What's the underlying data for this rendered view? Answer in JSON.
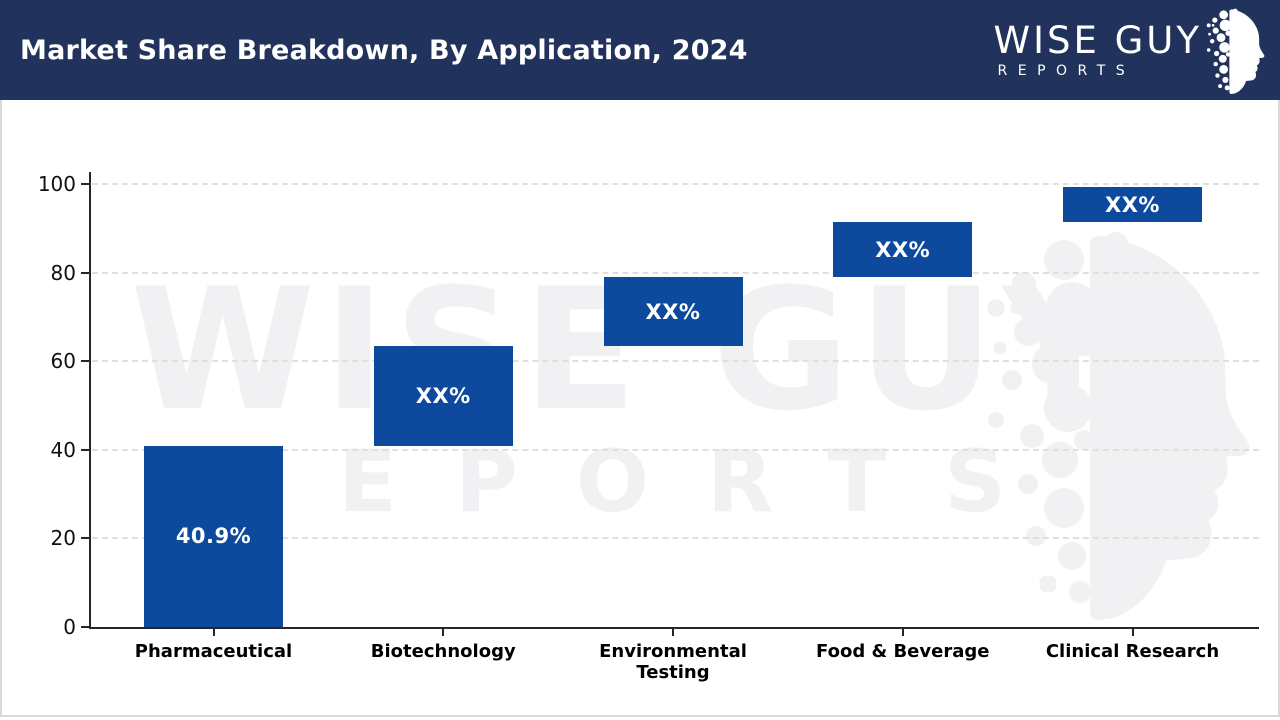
{
  "header": {
    "title": "Market Share Breakdown, By Application, 2024",
    "logo": {
      "line1": "WISE GUY",
      "line2": "REPORTS",
      "head_icon": "dotted-head-profile-icon"
    }
  },
  "watermark": {
    "line1": "WISE GUY",
    "line2": "REPORTS",
    "head_icon": "dotted-head-profile-icon"
  },
  "chart_data": {
    "type": "bar",
    "subtype": "waterfall-breakdown",
    "title": "Market Share Breakdown, By Application, 2024",
    "categories": [
      "Pharmaceutical",
      "Biotechnology",
      "Environmental Testing",
      "Food & Beverage",
      "Clinical Research"
    ],
    "segments": [
      {
        "category": "Pharmaceutical",
        "start": 0,
        "end": 40.9,
        "label": "40.9%"
      },
      {
        "category": "Biotechnology",
        "start": 40.9,
        "end": 63.5,
        "label": "XX%"
      },
      {
        "category": "Environmental Testing",
        "start": 63.5,
        "end": 78.9,
        "label": "XX%"
      },
      {
        "category": "Food & Beverage",
        "start": 78.9,
        "end": 91.4,
        "label": "XX%"
      },
      {
        "category": "Clinical Research",
        "start": 91.4,
        "end": 99.3,
        "label": "XX%"
      }
    ],
    "xlabel": "",
    "ylabel": "",
    "ylim": [
      0,
      100
    ],
    "yticks": [
      0,
      20,
      40,
      60,
      80,
      100
    ],
    "grid": "horizontal-dashed",
    "legend": "none",
    "bar_color": "#0d4a9d",
    "bar_label_color": "#ffffff"
  }
}
